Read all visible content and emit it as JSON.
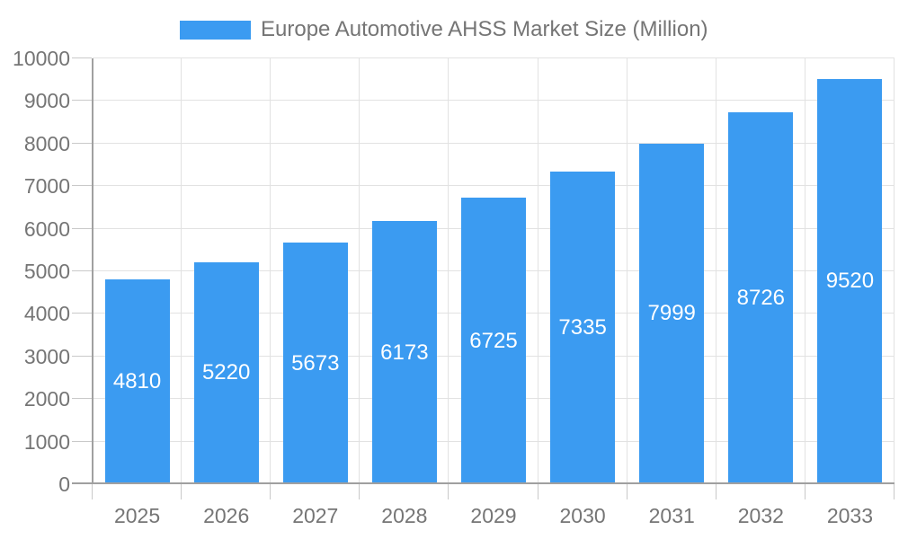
{
  "chart_data": {
    "type": "bar",
    "title": "Europe Automotive AHSS Market Size (Million)",
    "legend_position": "top",
    "categories": [
      "2025",
      "2026",
      "2027",
      "2028",
      "2029",
      "2030",
      "2031",
      "2032",
      "2033"
    ],
    "values": [
      4810,
      5220,
      5673,
      6173,
      6725,
      7335,
      7999,
      8726,
      9520
    ],
    "xlabel": "",
    "ylabel": "",
    "ylim": [
      0,
      10000
    ],
    "ytick_step": 1000,
    "y_ticks": [
      0,
      1000,
      2000,
      3000,
      4000,
      5000,
      6000,
      7000,
      8000,
      9000,
      10000
    ],
    "grid": "horizontal and vertical light gridlines",
    "bar_labels_inside": true,
    "colors": {
      "bar": "#3B9BF1",
      "bar_value_text": "#FFFFFF",
      "grid_line": "#E2E2E2",
      "tick_line": "#C9C9C9",
      "axis_line": "#A0A0A0",
      "axis_text": "#757575",
      "legend_text": "#757575",
      "background": "#FFFFFF"
    }
  }
}
